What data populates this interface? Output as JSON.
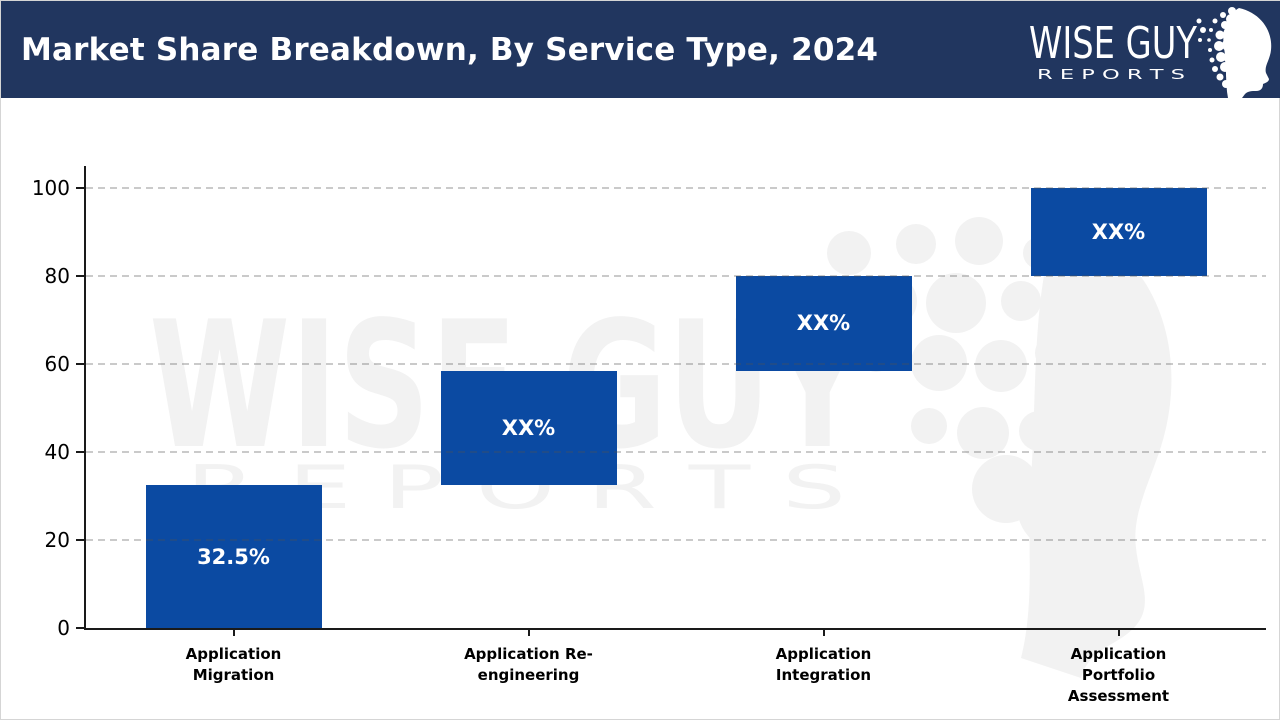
{
  "header": {
    "title": "Market Share Breakdown, By Service Type, 2024",
    "bg_color": "#21365f",
    "logo": {
      "wordmark": "WISE GUY",
      "subtext": "R E P O R T S"
    }
  },
  "watermark": {
    "wordmark": "WISE GUY",
    "subtext": "R E P O R T S"
  },
  "chart_data": {
    "type": "bar",
    "subtype": "waterfall",
    "title": "Market Share Breakdown, By Service Type, 2024",
    "categories": [
      "Application Migration",
      "Application Re-engineering",
      "Application Integration",
      "Application Portfolio Assessment"
    ],
    "category_lines": [
      [
        "Application",
        "Migration"
      ],
      [
        "Application Re-",
        "engineering"
      ],
      [
        "Application",
        "Integration"
      ],
      [
        "Application",
        "Portfolio",
        "Assessment"
      ]
    ],
    "segments": [
      {
        "start": 0,
        "end": 32.5,
        "label": "32.5%"
      },
      {
        "start": 32.5,
        "end": 58.5,
        "label": "XX%"
      },
      {
        "start": 58.5,
        "end": 80,
        "label": "XX%"
      },
      {
        "start": 80,
        "end": 100,
        "label": "XX%"
      }
    ],
    "yticks": [
      0,
      20,
      40,
      60,
      80,
      100
    ],
    "ylim": [
      0,
      105
    ],
    "xlabel": "",
    "ylabel": "",
    "grid": {
      "axis": "y",
      "style": "dashed",
      "color": "#d9d9d9"
    },
    "bar_color": "#0b4aa2",
    "value_label_color": "#ffffff",
    "legend": "none"
  }
}
